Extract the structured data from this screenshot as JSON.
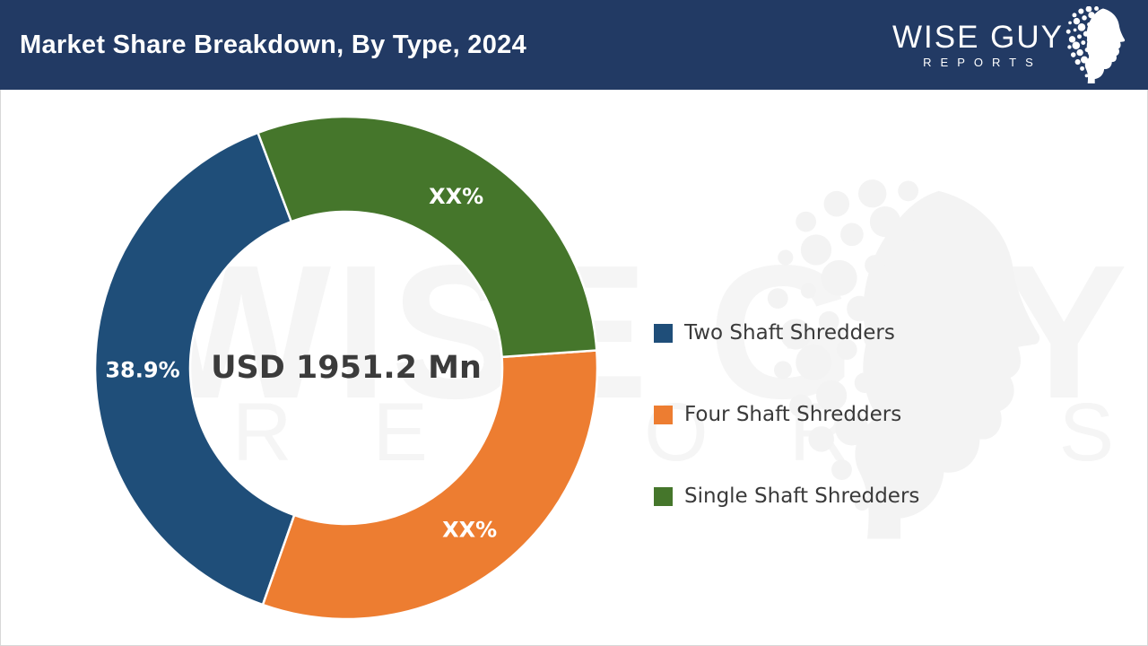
{
  "header": {
    "title": "Market Share Breakdown, By Type, 2024",
    "bg_color": "#223A64",
    "logo": {
      "wordmark": "WISE GUY",
      "subtext": "REPORTS"
    }
  },
  "watermark": {
    "line1": "WISE GUY",
    "line2": "REPORTS"
  },
  "chart_data": {
    "type": "pie",
    "subtype": "donut",
    "title": "Market Share Breakdown, By Type, 2024",
    "center_label": "USD 1951.2 Mn",
    "legend_position": "right",
    "colors": {
      "blue": "#1F4E79",
      "orange": "#ED7D31",
      "green": "#45762B"
    },
    "slices": [
      {
        "label": "Two Shaft Shredders",
        "display_pct": "38.9%",
        "value_pct": 38.9,
        "color": "#1F4E79",
        "start_deg": 199.4,
        "sweep_deg": 140.0
      },
      {
        "label": "Four Shaft Shredders",
        "display_pct": "XX%",
        "color": "#ED7D31",
        "start_deg": 86.0,
        "sweep_deg": 113.4
      },
      {
        "label": "Single Shaft Shredders",
        "display_pct": "XX%",
        "color": "#45762B",
        "start_deg": 339.4,
        "sweep_deg": 106.6
      }
    ]
  }
}
